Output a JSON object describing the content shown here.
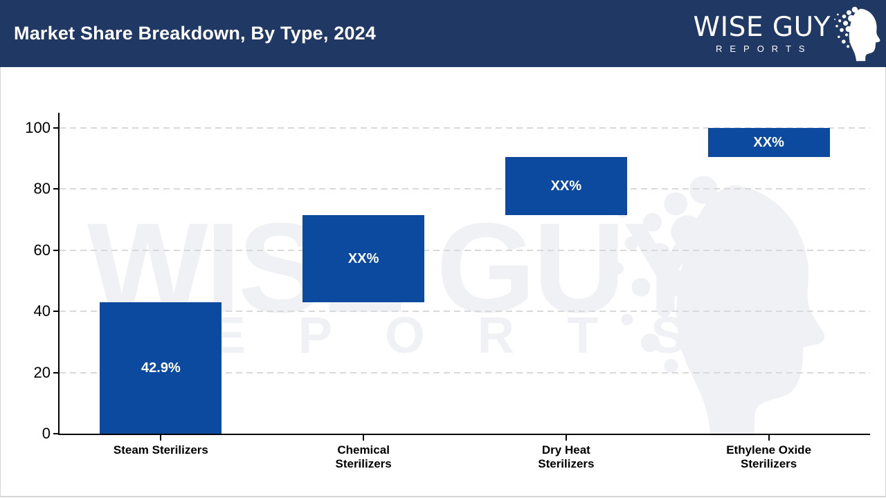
{
  "header": {
    "title": "Market Share Breakdown, By Type, 2024",
    "bg_color": "#203864",
    "logo": {
      "line1": "WISE GUY",
      "line2": "REPORTS"
    }
  },
  "watermark": {
    "line1": "WISE GUY",
    "line2": "REPORTS"
  },
  "chart_data": {
    "type": "bar",
    "subtype": "waterfall-market-share-breakdown",
    "title": "Market Share Breakdown, By Type, 2024",
    "categories": [
      [
        "Steam Sterilizers"
      ],
      [
        "Chemical",
        "Sterilizers"
      ],
      [
        "Dry Heat",
        "Sterilizers"
      ],
      [
        "Ethylene Oxide",
        "Sterilizers"
      ]
    ],
    "bars": [
      {
        "start": 0,
        "end": 42.9,
        "label": "42.9%"
      },
      {
        "start": 42.9,
        "end": 71.4,
        "label": "XX%"
      },
      {
        "start": 71.4,
        "end": 90.5,
        "label": "XX%"
      },
      {
        "start": 90.5,
        "end": 100,
        "label": "XX%"
      }
    ],
    "yticks": [
      0,
      20,
      40,
      60,
      80,
      100
    ],
    "ylim": [
      0,
      105
    ],
    "grid": true,
    "legend": "none",
    "bar_color": "#0b4a9f",
    "bar_label_color": "#ffffff",
    "gridline_color": "#d9d9d9",
    "axis_color": "#000000"
  }
}
